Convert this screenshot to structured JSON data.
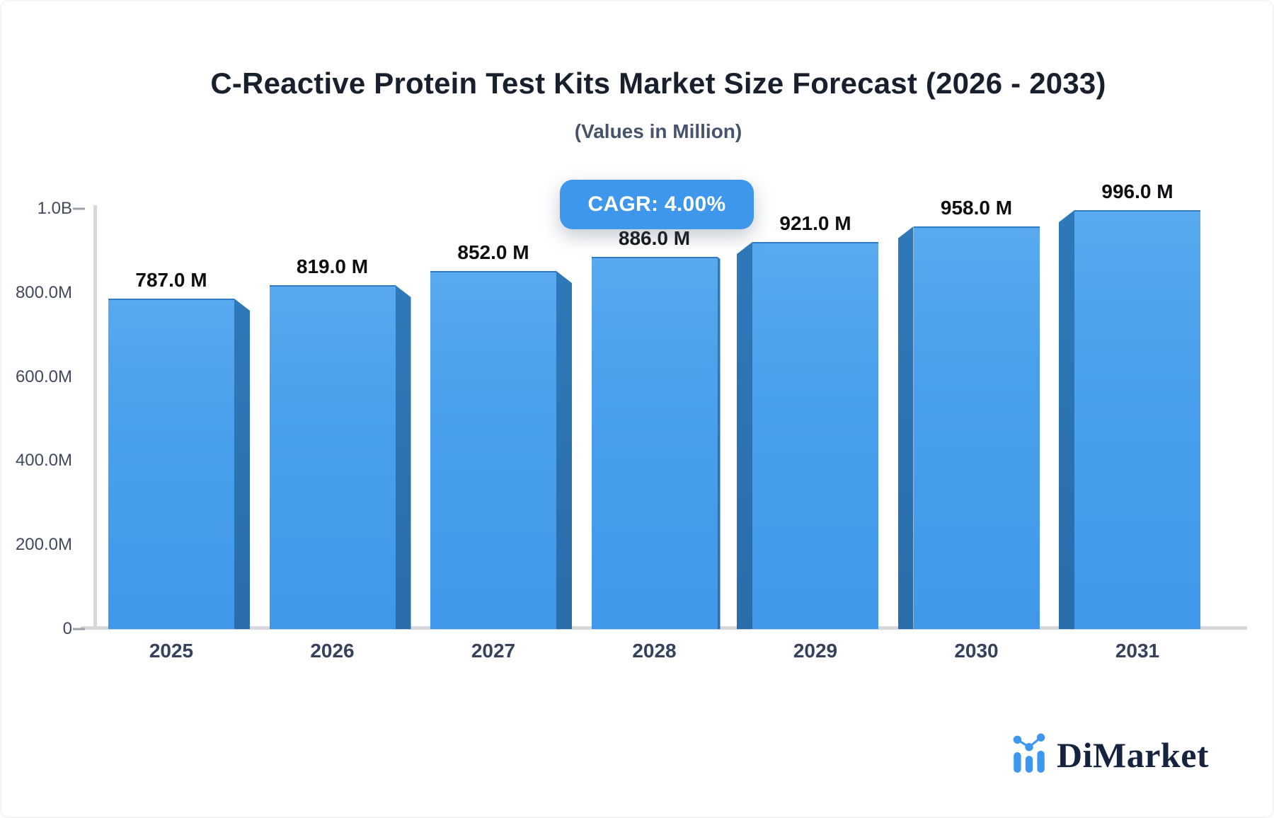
{
  "header": {
    "title": "C-Reactive Protein Test Kits Market Size Forecast (2026 - 2033)",
    "subtitle": "(Values in Million)"
  },
  "cagr_badge": {
    "label": "CAGR: 4.00%",
    "color": "#3e97ea"
  },
  "chart_data": {
    "type": "bar",
    "title": "C-Reactive Protein Test Kits Market Size Forecast (2026 - 2033)",
    "subtitle": "(Values in Million)",
    "categories": [
      "2025",
      "2026",
      "2027",
      "2028",
      "2029",
      "2030",
      "2031"
    ],
    "values": [
      787,
      819,
      852,
      886,
      921,
      958,
      996
    ],
    "value_labels": [
      "787.0 M",
      "819.0 M",
      "852.0 M",
      "886.0 M",
      "921.0 M",
      "958.0 M",
      "996.0 M"
    ],
    "unit": "Million",
    "xlabel": "",
    "ylabel": "",
    "ylim": [
      0,
      1000
    ],
    "yticks": [
      {
        "label": "1.0B",
        "value": 1000,
        "dash": true
      },
      {
        "label": "800.0M",
        "value": 800,
        "dash": false
      },
      {
        "label": "600.0M",
        "value": 600,
        "dash": false
      },
      {
        "label": "400.0M",
        "value": 400,
        "dash": false
      },
      {
        "label": "200.0M",
        "value": 200,
        "dash": false
      },
      {
        "label": "0",
        "value": 0,
        "dash": true
      }
    ],
    "grid": false,
    "legend": false,
    "bar_style_3d": true,
    "colors": {
      "bar_top": "#58a9ee",
      "bar_bottom": "#3f98ea",
      "bar_side": "#2d74b2",
      "axis_line": "#d6d8dc",
      "tick_text": "#3f4a5e",
      "value_text": "#0d0f12"
    }
  },
  "logo": {
    "text": "DiMarket",
    "icon": "mini-bar-line-chart-icon",
    "icon_color": "#3e97ef",
    "text_color": "#16233f"
  }
}
